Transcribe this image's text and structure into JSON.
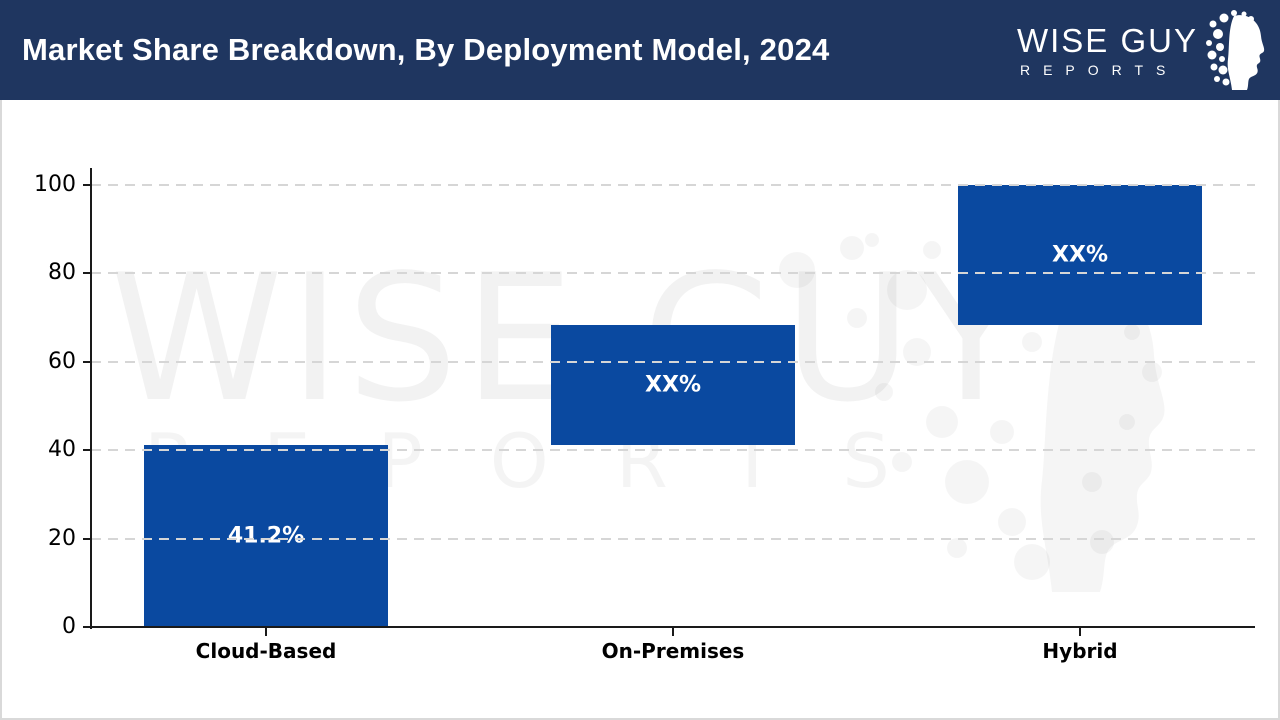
{
  "header": {
    "title": "Market Share Breakdown, By Deployment Model, 2024",
    "logo": {
      "line1": "WISE GUY",
      "line2": "REPORTS"
    }
  },
  "watermark": {
    "line1": "WISE GUY",
    "line2": "REPORTS"
  },
  "chart_data": {
    "type": "bar",
    "subtype": "stacked-waterfall",
    "title": "Market Share Breakdown, By Deployment Model, 2024",
    "categories": [
      "Cloud-Based",
      "On-Premises",
      "Hybrid"
    ],
    "segments": [
      {
        "category": "Cloud-Based",
        "start": 0,
        "end": 41.2,
        "label": "41.2%"
      },
      {
        "category": "On-Premises",
        "start": 41.2,
        "end": 68.3,
        "label": "XX%"
      },
      {
        "category": "Hybrid",
        "start": 68.3,
        "end": 100,
        "label": "XX%"
      }
    ],
    "xlabel": "",
    "ylabel": "",
    "ylim": [
      0,
      100
    ],
    "yticks": [
      0,
      20,
      40,
      60,
      80,
      100
    ],
    "grid": "horizontal-dashed",
    "legend": "none",
    "bar_color": "#0A49A0",
    "bar_label_color": "#ffffff",
    "axis_color": "#1a1a1a",
    "grid_color": "#d6d6d6",
    "header_bg": "#1F3660",
    "background": "#ffffff"
  }
}
